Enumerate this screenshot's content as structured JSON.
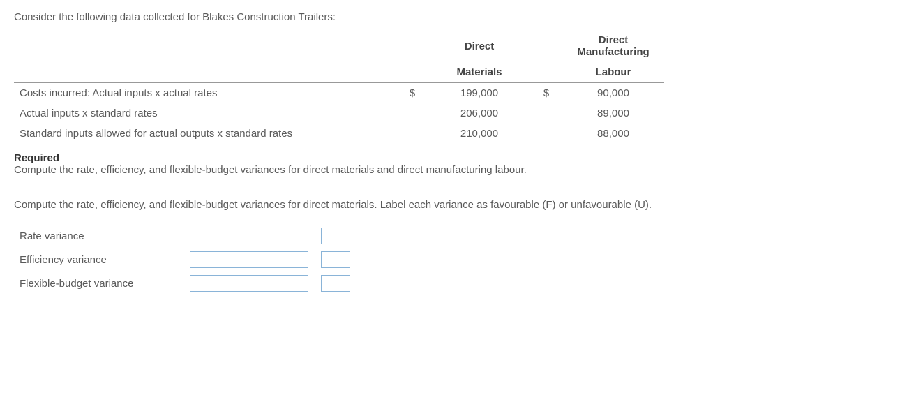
{
  "intro": "Consider the following data collected for Blakes Construction Trailers:",
  "table": {
    "header1_col1": "Direct",
    "header1_col2": "Direct Manufacturing",
    "header2_col1": "Materials",
    "header2_col2": "Labour",
    "currency": "$",
    "rows": [
      {
        "label": "Costs incurred: Actual inputs x actual rates",
        "dm": "199,000",
        "dml": "90,000",
        "show_cur": true
      },
      {
        "label": "Actual inputs x standard rates",
        "dm": "206,000",
        "dml": "89,000",
        "show_cur": false
      },
      {
        "label": "Standard inputs allowed for actual outputs x standard rates",
        "dm": "210,000",
        "dml": "88,000",
        "show_cur": false
      }
    ]
  },
  "required_label": "Required",
  "required_text": "Compute the rate, efficiency, and flexible-budget variances for direct materials and direct manufacturing labour.",
  "instruction": "Compute the rate, efficiency, and flexible-budget variances for direct materials. Label each variance as favourable (F) or unfavourable (U).",
  "answers": {
    "rows": [
      {
        "label": "Rate variance"
      },
      {
        "label": "Efficiency variance"
      },
      {
        "label": "Flexible-budget variance"
      }
    ]
  }
}
